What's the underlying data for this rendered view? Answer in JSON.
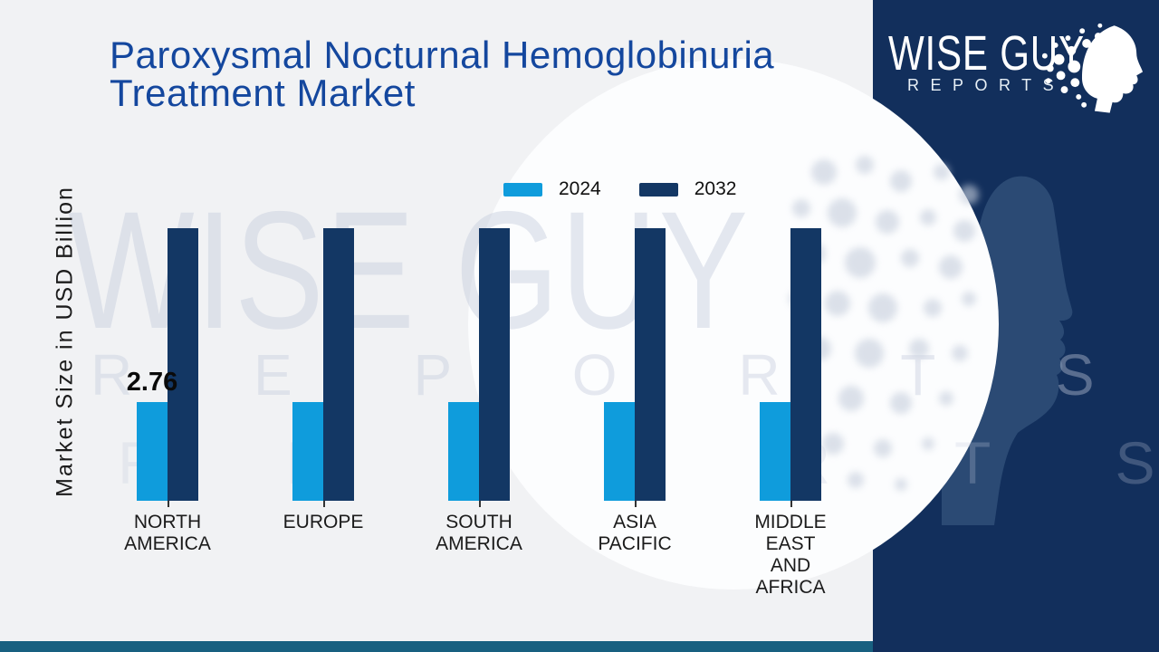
{
  "page": {
    "background": "#f1f2f4",
    "accent_bar_color": "#186080",
    "panel_color": "#122f5c",
    "face_silhouette_color": "#2b4a74"
  },
  "header": {
    "title": "Paroxysmal Nocturnal Hemoglobinuria Treatment Market",
    "title_color": "#14479e"
  },
  "brand": {
    "name": "WISE GUY",
    "subname": "REPORTS"
  },
  "watermark": {
    "line1": "WISE GUY",
    "line2": "R E P O R T S"
  },
  "chart_data": {
    "type": "bar",
    "title": "Paroxysmal Nocturnal Hemoglobinuria Treatment Market",
    "xlabel": "",
    "ylabel": "Market Size in USD Billion",
    "units": "USD Billion",
    "ylim": [
      0,
      8
    ],
    "grid": false,
    "legend_position": "top",
    "categories": [
      "NORTH AMERICA",
      "EUROPE",
      "SOUTH AMERICA",
      "ASIA PACIFIC",
      "MIDDLE EAST AND AFRICA"
    ],
    "category_lines": [
      [
        "NORTH",
        "AMERICA"
      ],
      [
        "EUROPE"
      ],
      [
        "SOUTH",
        "AMERICA"
      ],
      [
        "ASIA",
        "PACIFIC"
      ],
      [
        "MIDDLE",
        "EAST",
        "AND",
        "AFRICA"
      ]
    ],
    "series": [
      {
        "name": "2024",
        "color": "#0f9cdc",
        "values": [
          2.76,
          2.76,
          2.76,
          2.76,
          2.76
        ]
      },
      {
        "name": "2032",
        "color": "#133764",
        "values": [
          7.6,
          7.6,
          7.6,
          7.6,
          7.6
        ]
      }
    ],
    "value_labels": [
      {
        "series_index": 0,
        "category_index": 0,
        "text": "2.76"
      }
    ]
  }
}
